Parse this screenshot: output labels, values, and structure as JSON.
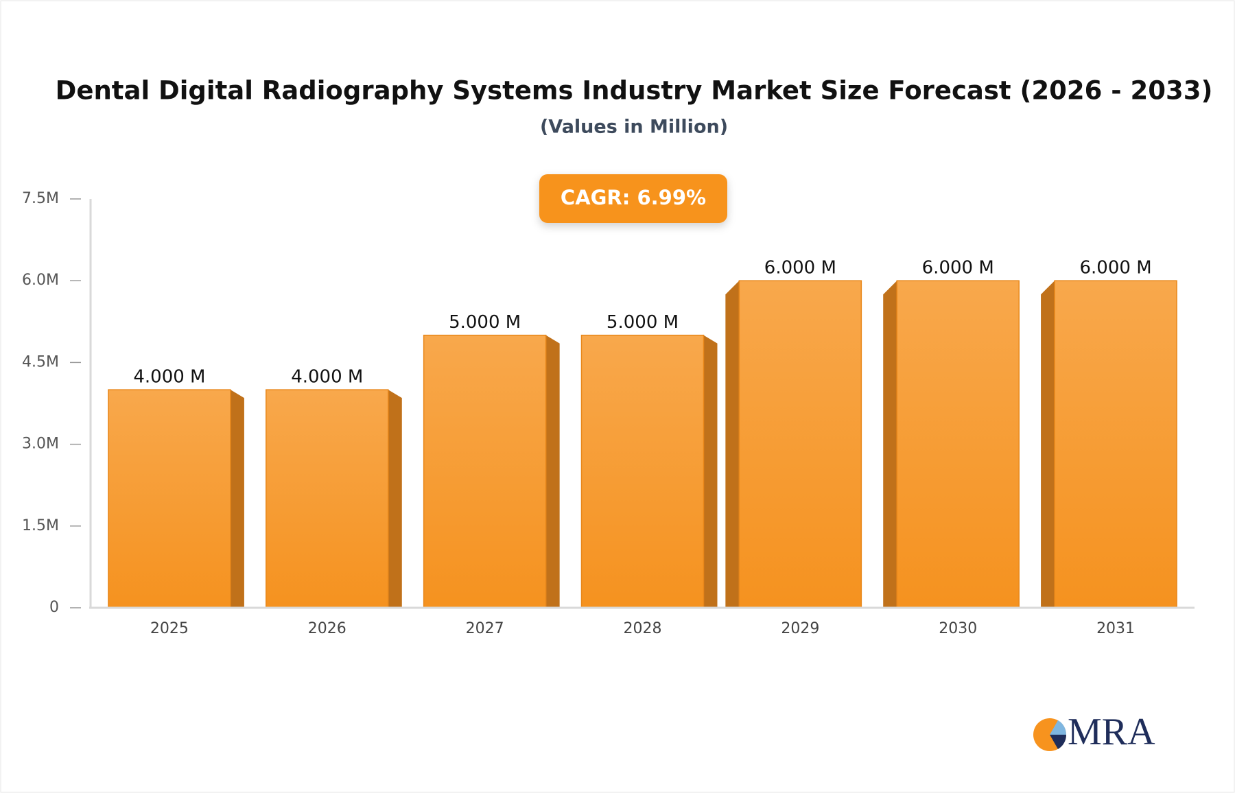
{
  "chart_data": {
    "type": "bar",
    "title": "Dental Digital Radiography Systems Industry Market Size Forecast (2026 - 2033)",
    "subtitle": "(Values in Million)",
    "annotation": "CAGR: 6.99%",
    "logo": "MRA",
    "categories": [
      "2025",
      "2026",
      "2027",
      "2028",
      "2029",
      "2030",
      "2031"
    ],
    "values": [
      4,
      4,
      5,
      5,
      6,
      6,
      6
    ],
    "value_labels": [
      "4.000 M",
      "4.000 M",
      "5.000 M",
      "5.000 M",
      "6.000 M",
      "6.000 M",
      "6.000 M"
    ],
    "color": "#f7a03c",
    "ylim": [
      0,
      7.5
    ],
    "yticks": [
      0,
      {
        "value": 1.5,
        "label": "1.5M"
      },
      {
        "value": 3,
        "label": "3.0M"
      },
      {
        "value": 4.5,
        "label": "4.5M"
      },
      {
        "value": 6,
        "label": "6.0M"
      },
      {
        "value": 7.5,
        "label": "7.5M"
      }
    ]
  }
}
